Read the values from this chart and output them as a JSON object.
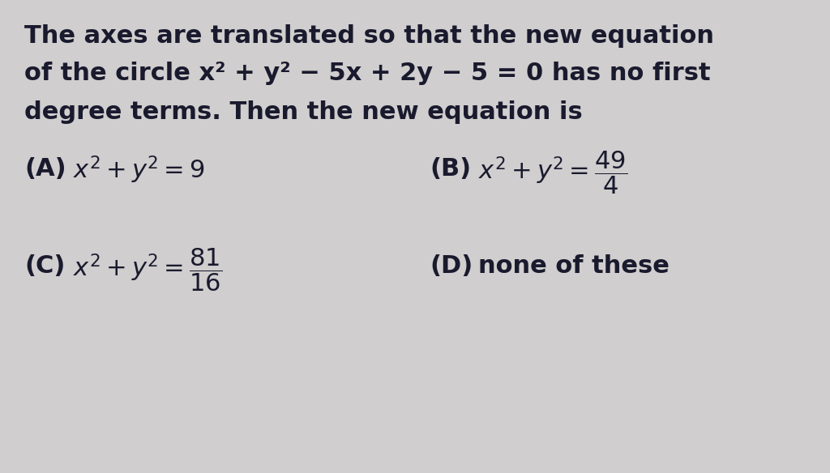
{
  "background_color": "#d0cece",
  "text_color": "#1a1a2e",
  "font_size_title": 22,
  "font_size_options": 22,
  "line1": "The axes are translated so that the new equation",
  "line2": "of the circle x² + y² − 5x + 2y − 5 = 0 has no first",
  "line3": "degree terms. Then the new equation is",
  "optA_label": "(A)",
  "optA_eq": "$x^2 + y^2 = 9$",
  "optB_label": "(B)",
  "optB_eq": "$x^2 + y^2 = \\dfrac{49}{4}$",
  "optC_label": "(C)",
  "optC_eq": "$x^2 + y^2 = \\dfrac{81}{16}$",
  "optD_label": "(D)",
  "optD_text": "none of these"
}
